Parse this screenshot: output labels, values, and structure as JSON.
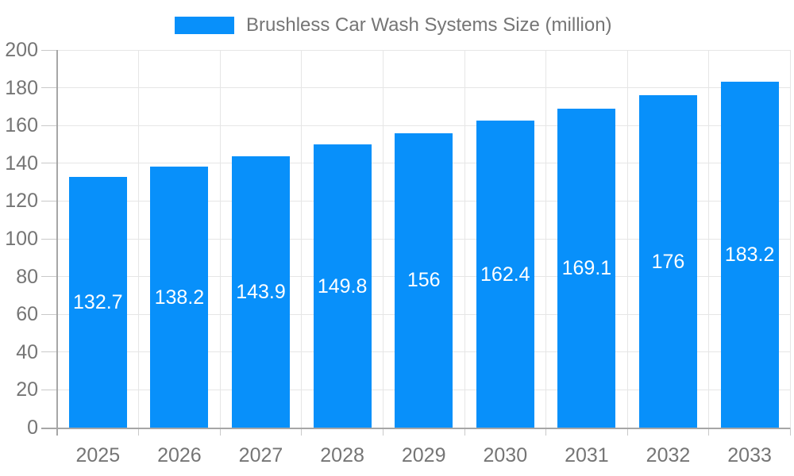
{
  "legend": {
    "label": "Brushless Car Wash Systems Size (million)"
  },
  "chart_data": {
    "type": "bar",
    "title": "Brushless Car Wash Systems Size (million)",
    "categories": [
      "2025",
      "2026",
      "2027",
      "2028",
      "2029",
      "2030",
      "2031",
      "2032",
      "2033"
    ],
    "values": [
      132.7,
      138.2,
      143.9,
      149.8,
      156,
      162.4,
      169.1,
      176,
      183.2
    ],
    "xlabel": "",
    "ylabel": "",
    "ylim": [
      0,
      200
    ],
    "ytick_step": 20,
    "ytick_labels": [
      "0",
      "20",
      "40",
      "60",
      "80",
      "100",
      "120",
      "140",
      "160",
      "180",
      "200"
    ],
    "grid": true,
    "legend_position": "top-center",
    "value_label_position": "inside-middle",
    "colors": {
      "bar": "#0890fa",
      "grid_line": "#e6e6e6",
      "axis_line": "#a6a6a6",
      "tick_line": "#c9c9c9",
      "axis_text": "#757575",
      "value_text": "#ffffff"
    }
  }
}
